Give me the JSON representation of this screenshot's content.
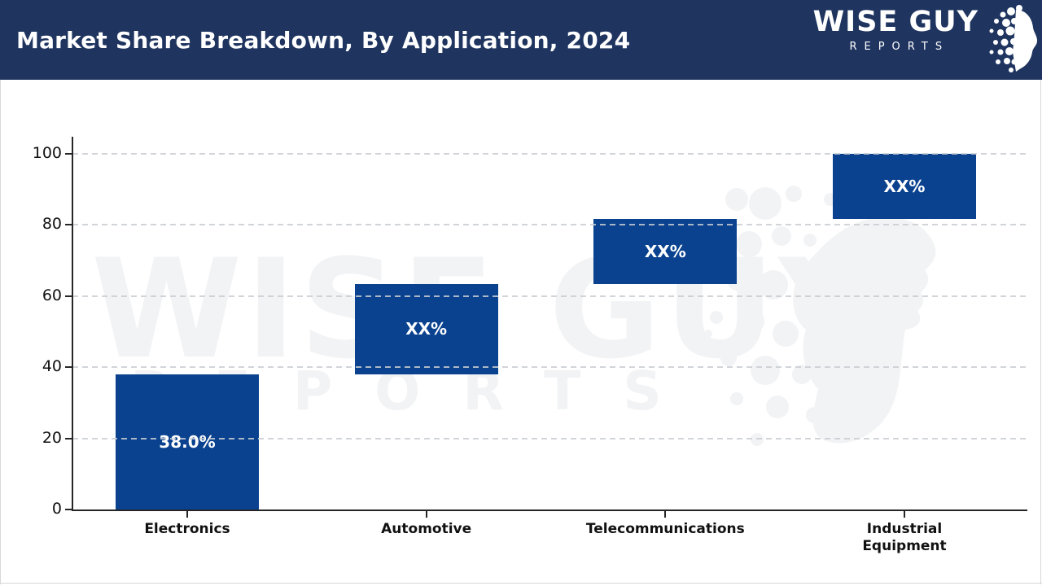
{
  "header": {
    "title": "Market Share Breakdown, By Application, 2024"
  },
  "logo": {
    "line1": "WISE GUY",
    "line2": "REPORTS",
    "head_icon": "dotted-head-profile"
  },
  "watermark": {
    "line1": "WISE GUY",
    "line2": "REPORTS",
    "head_icon": "dotted-head-profile"
  },
  "colors": {
    "header_bg": "#1f3560",
    "bar": "#0a428f",
    "grid": "#c9cdd2",
    "axis": "#262626",
    "watermark": "#f2f3f5"
  },
  "chart_data": {
    "type": "bar",
    "subtype": "waterfall",
    "title": "Market Share Breakdown, By Application, 2024",
    "xlabel": "",
    "ylabel": "",
    "ylim": [
      0,
      100
    ],
    "yticks": [
      0,
      20,
      40,
      60,
      80,
      100
    ],
    "grid": "horizontal-dashed",
    "legend": "none",
    "categories": [
      "Electronics",
      "Automotive",
      "Telecommunications",
      "Industrial Equipment"
    ],
    "segments": [
      {
        "category": "Electronics",
        "category_lines": [
          "Electronics"
        ],
        "start": 0,
        "end": 38.0,
        "label": "38.0%"
      },
      {
        "category": "Automotive",
        "category_lines": [
          "Automotive"
        ],
        "start": 38.0,
        "end": 63.4,
        "label": "XX%"
      },
      {
        "category": "Telecommunications",
        "category_lines": [
          "Telecommunications"
        ],
        "start": 63.4,
        "end": 81.5,
        "label": "XX%"
      },
      {
        "category": "Industrial Equipment",
        "category_lines": [
          "Industrial",
          "Equipment"
        ],
        "start": 81.5,
        "end": 100.0,
        "label": "XX%"
      }
    ]
  }
}
